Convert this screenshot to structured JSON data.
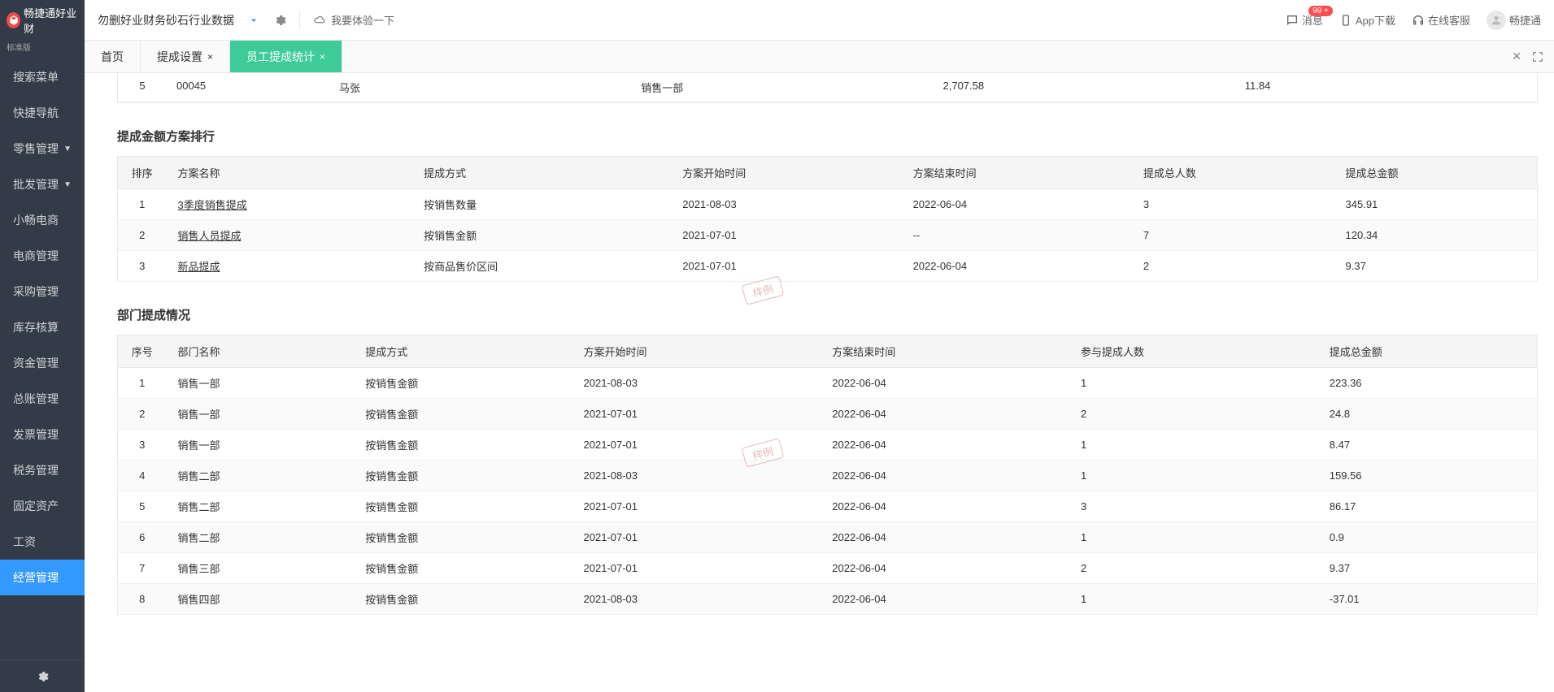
{
  "theme": {
    "sidebar_bg": "#323b47",
    "accent_green": "#3ccb99",
    "accent_blue": "#3399ff",
    "badge_red": "#ff4d4f",
    "border_color": "#e8e8e8"
  },
  "brand": {
    "name": "畅捷通好业财",
    "edition": "标准版"
  },
  "sidebar": {
    "items": [
      {
        "label": "搜索菜单",
        "expandable": false
      },
      {
        "label": "快捷导航",
        "expandable": false
      },
      {
        "label": "零售管理",
        "expandable": true
      },
      {
        "label": "批发管理",
        "expandable": true
      },
      {
        "label": "小畅电商",
        "expandable": false
      },
      {
        "label": "电商管理",
        "expandable": false
      },
      {
        "label": "采购管理",
        "expandable": false
      },
      {
        "label": "库存核算",
        "expandable": false
      },
      {
        "label": "资金管理",
        "expandable": false
      },
      {
        "label": "总账管理",
        "expandable": false
      },
      {
        "label": "发票管理",
        "expandable": false
      },
      {
        "label": "税务管理",
        "expandable": false
      },
      {
        "label": "固定资产",
        "expandable": false
      },
      {
        "label": "工资",
        "expandable": false
      },
      {
        "label": "经营管理",
        "expandable": false,
        "active": true
      }
    ]
  },
  "header": {
    "org_name": "勿删好业财务砂石行业数据",
    "experience_label": "我要体验一下",
    "message_label": "消息",
    "badge_count": "99 +",
    "app_download_label": "App下载",
    "customer_service_label": "在线客服",
    "username": "畅捷通"
  },
  "tabs": [
    {
      "label": "首页",
      "closable": false,
      "active": false
    },
    {
      "label": "提成设置",
      "closable": true,
      "active": false
    },
    {
      "label": "员工提成统计",
      "closable": true,
      "active": true
    }
  ],
  "partial_table_row": {
    "seq": "5",
    "code": "00045",
    "name": "马张",
    "dept": "销售一部",
    "amount1": "2,707.58",
    "amount2": "11.84"
  },
  "plan_ranking": {
    "title": "提成金额方案排行",
    "columns": [
      "排序",
      "方案名称",
      "提成方式",
      "方案开始时间",
      "方案结束时间",
      "提成总人数",
      "提成总金额"
    ],
    "rows": [
      {
        "rank": "1",
        "name": "3季度销售提成",
        "method": "按销售数量",
        "start": "2021-08-03",
        "end": "2022-06-04",
        "people": "3",
        "amount": "345.91"
      },
      {
        "rank": "2",
        "name": "销售人员提成",
        "method": "按销售金额",
        "start": "2021-07-01",
        "end": "--",
        "people": "7",
        "amount": "120.34"
      },
      {
        "rank": "3",
        "name": "新品提成",
        "method": "按商品售价区间",
        "start": "2021-07-01",
        "end": "2022-06-04",
        "people": "2",
        "amount": "9.37"
      }
    ]
  },
  "dept_status": {
    "title": "部门提成情况",
    "columns": [
      "序号",
      "部门名称",
      "提成方式",
      "方案开始时间",
      "方案结束时间",
      "参与提成人数",
      "提成总金额"
    ],
    "rows": [
      {
        "seq": "1",
        "dept": "销售一部",
        "method": "按销售金额",
        "start": "2021-08-03",
        "end": "2022-06-04",
        "people": "1",
        "amount": "223.36"
      },
      {
        "seq": "2",
        "dept": "销售一部",
        "method": "按销售金额",
        "start": "2021-07-01",
        "end": "2022-06-04",
        "people": "2",
        "amount": "24.8"
      },
      {
        "seq": "3",
        "dept": "销售一部",
        "method": "按销售金额",
        "start": "2021-07-01",
        "end": "2022-06-04",
        "people": "1",
        "amount": "8.47"
      },
      {
        "seq": "4",
        "dept": "销售二部",
        "method": "按销售金额",
        "start": "2021-08-03",
        "end": "2022-06-04",
        "people": "1",
        "amount": "159.56"
      },
      {
        "seq": "5",
        "dept": "销售二部",
        "method": "按销售金额",
        "start": "2021-07-01",
        "end": "2022-06-04",
        "people": "3",
        "amount": "86.17"
      },
      {
        "seq": "6",
        "dept": "销售二部",
        "method": "按销售金额",
        "start": "2021-07-01",
        "end": "2022-06-04",
        "people": "1",
        "amount": "0.9"
      },
      {
        "seq": "7",
        "dept": "销售三部",
        "method": "按销售金额",
        "start": "2021-07-01",
        "end": "2022-06-04",
        "people": "2",
        "amount": "9.37"
      },
      {
        "seq": "8",
        "dept": "销售四部",
        "method": "按销售金额",
        "start": "2021-08-03",
        "end": "2022-06-04",
        "people": "1",
        "amount": "-37.01"
      }
    ]
  },
  "watermark_text": "样例"
}
